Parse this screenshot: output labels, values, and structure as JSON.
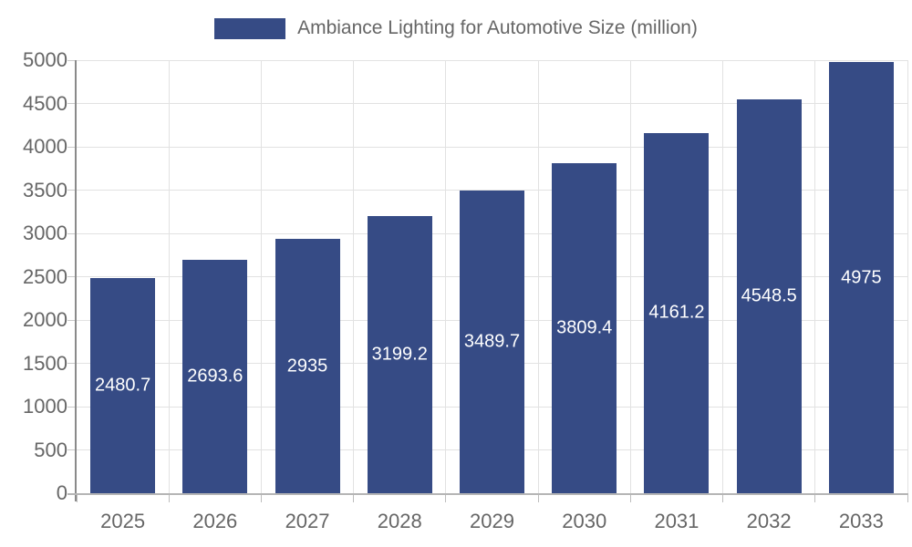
{
  "legend": {
    "label": "Ambiance Lighting for Automotive Size (million)",
    "swatch_color": "#364b85"
  },
  "chart_data": {
    "type": "bar",
    "title": "",
    "series_name": "Ambiance Lighting for Automotive Size (million)",
    "categories": [
      "2025",
      "2026",
      "2027",
      "2028",
      "2029",
      "2030",
      "2031",
      "2032",
      "2033"
    ],
    "values": [
      2480.7,
      2693.6,
      2935,
      3199.2,
      3489.7,
      3809.4,
      4161.2,
      4548.5,
      4975
    ],
    "bar_labels": [
      "2480.7",
      "2693.6",
      "2935",
      "3199.2",
      "3489.7",
      "3809.4",
      "4161.2",
      "4548.5",
      "4975"
    ],
    "xlabel": "",
    "ylabel": "",
    "ylim": [
      0,
      5000
    ],
    "yticks": [
      0,
      500,
      1000,
      1500,
      2000,
      2500,
      3000,
      3500,
      4000,
      4500,
      5000
    ],
    "grid": true,
    "legend_position": "top",
    "bar_color": "#364b85",
    "bar_label_color": "#ffffff"
  },
  "colors": {
    "background": "#ffffff",
    "axis_text": "#666666",
    "gridline": "#e2e2e2",
    "y_axis_line": "#8a8a8a",
    "x_axis_line": "#b5b5b5"
  }
}
